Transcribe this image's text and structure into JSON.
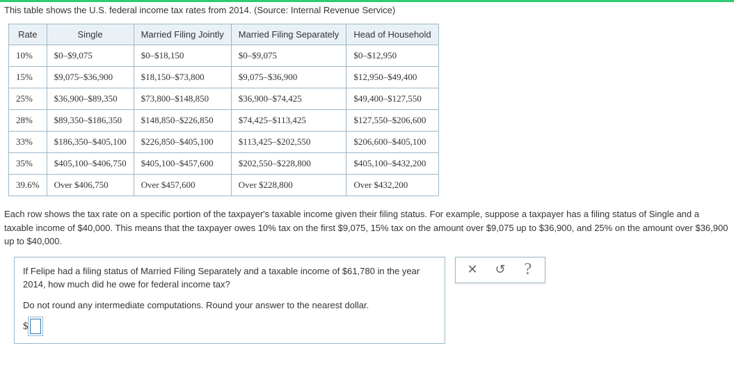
{
  "intro": "This table shows the U.S. federal income tax rates from 2014. (Source: Internal Revenue Service)",
  "table": {
    "headers": [
      "Rate",
      "Single",
      "Married Filing Jointly",
      "Married Filing Separately",
      "Head of Household"
    ],
    "rows": [
      [
        "10%",
        "$0–$9,075",
        "$0–$18,150",
        "$0–$9,075",
        "$0–$12,950"
      ],
      [
        "15%",
        "$9,075–$36,900",
        "$18,150–$73,800",
        "$9,075–$36,900",
        "$12,950–$49,400"
      ],
      [
        "25%",
        "$36,900–$89,350",
        "$73,800–$148,850",
        "$36,900–$74,425",
        "$49,400–$127,550"
      ],
      [
        "28%",
        "$89,350–$186,350",
        "$148,850–$226,850",
        "$74,425–$113,425",
        "$127,550–$206,600"
      ],
      [
        "33%",
        "$186,350–$405,100",
        "$226,850–$405,100",
        "$113,425–$202,550",
        "$206,600–$405,100"
      ],
      [
        "35%",
        "$405,100–$406,750",
        "$405,100–$457,600",
        "$202,550–$228,800",
        "$405,100–$432,200"
      ],
      [
        "39.6%",
        "Over $406,750",
        "Over $457,600",
        "Over $228,800",
        "Over $432,200"
      ]
    ]
  },
  "explain": "Each row shows the tax rate on a specific portion of the taxpayer's taxable income given their filing status. For example, suppose a taxpayer has a filing status of Single and a taxable income of $40,000. This means that the taxpayer owes 10% tax on the first $9,075, 15% tax on the amount over $9,075 up to $36,900, and 25% on the amount over $36,900 up to $40,000.",
  "question": {
    "line1": "If Felipe had a filing status of Married Filing Separately and a taxable income of $61,780 in the year 2014, how much did he owe for federal income tax?",
    "line2": "Do not round any intermediate computations. Round your answer to the nearest dollar.",
    "currency_symbol": "$",
    "input_value": ""
  },
  "toolbar": {
    "close": "✕",
    "reset": "↺",
    "help": "?"
  },
  "colors": {
    "accent_border": "#9bb8c9",
    "header_bg": "#eaf1f6",
    "top_bar": "#2ecc71"
  }
}
